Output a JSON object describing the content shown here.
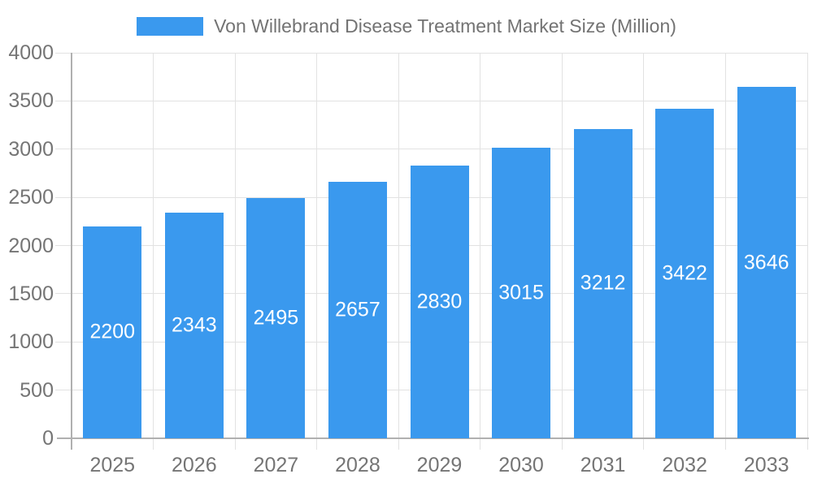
{
  "chart_data": {
    "type": "bar",
    "title": "Von Willebrand Disease Treatment Market Size (Million)",
    "categories": [
      "2025",
      "2026",
      "2027",
      "2028",
      "2029",
      "2030",
      "2031",
      "2032",
      "2033"
    ],
    "values": [
      2200,
      2343,
      2495,
      2657,
      2830,
      3015,
      3212,
      3422,
      3646
    ],
    "series": [
      {
        "name": "Von Willebrand Disease Treatment Market Size (Million)",
        "values": [
          2200,
          2343,
          2495,
          2657,
          2830,
          3015,
          3212,
          3422,
          3646
        ]
      }
    ],
    "xlabel": "",
    "ylabel": "",
    "ylim": [
      0,
      4000
    ],
    "yticks": [
      0,
      500,
      1000,
      1500,
      2000,
      2500,
      3000,
      3500,
      4000
    ],
    "grid": true,
    "legend_position": "top",
    "value_labels": "inside-center",
    "colors": {
      "bar": "#3a99ee",
      "value_label_text": "#ffffff",
      "axis_tick_text": "#757575",
      "legend_text": "#737373",
      "gridline": "#e2e2e2",
      "axis_line": "#b0b0b0",
      "background": "#ffffff"
    }
  }
}
